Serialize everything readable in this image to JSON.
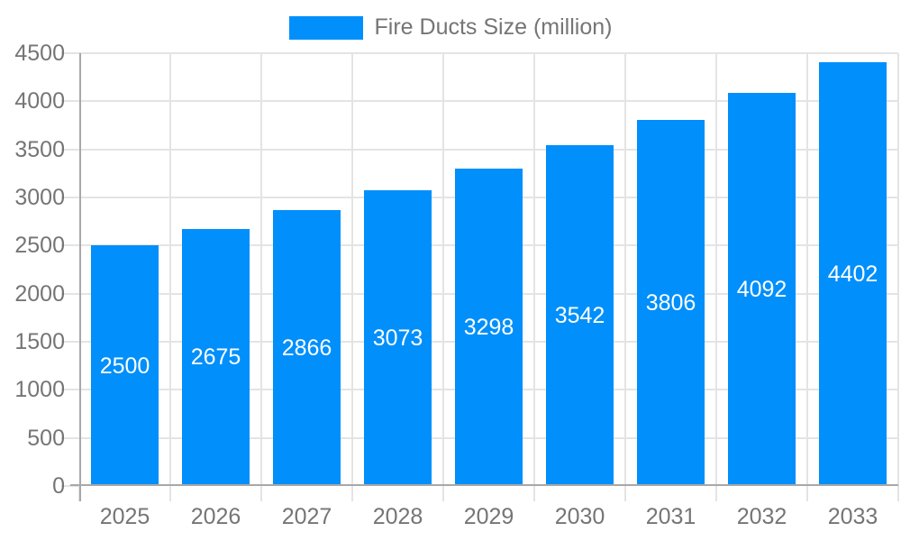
{
  "chart_data": {
    "type": "bar",
    "title": "Fire Ducts Size (million)",
    "categories": [
      "2025",
      "2026",
      "2027",
      "2028",
      "2029",
      "2030",
      "2031",
      "2032",
      "2033"
    ],
    "series": [
      {
        "name": "Fire Ducts Size (million)",
        "values": [
          2500,
          2675,
          2866,
          3073,
          3298,
          3542,
          3806,
          4092,
          4402
        ]
      }
    ],
    "xlabel": "",
    "ylabel": "",
    "ylim": [
      0,
      4500
    ],
    "ytick_step": 500,
    "grid": true,
    "legend_position": "top-center",
    "data_labels_position": "inside-center",
    "colors": {
      "bar": "#008FFB",
      "data_label": "#ffffff",
      "axis_text": "#757575",
      "grid": "#e4e4e4",
      "axis_line": "#a8a8a8",
      "background": "#ffffff"
    }
  }
}
